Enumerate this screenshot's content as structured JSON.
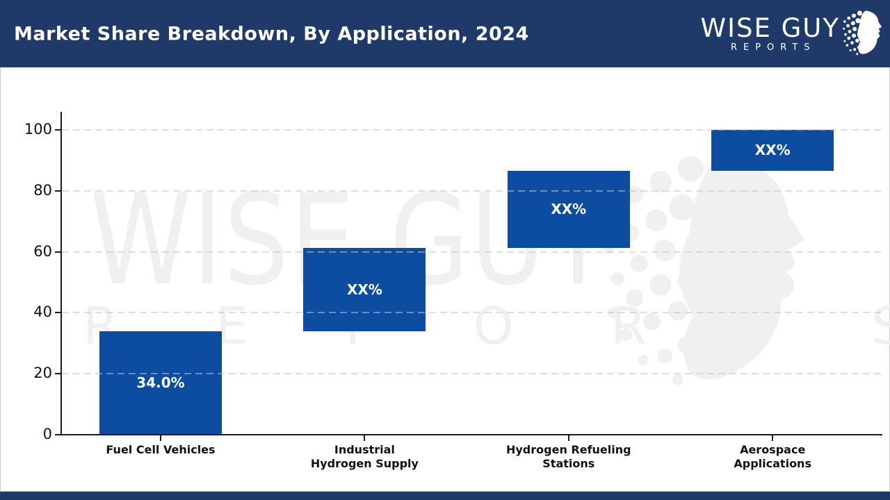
{
  "header": {
    "title": "Market Share Breakdown, By Application, 2024",
    "logo": {
      "line1": "WISE GUY",
      "line2": "REPORTS"
    }
  },
  "watermark": {
    "line1": "WISE GUY",
    "line2": "R E P O R T S"
  },
  "colors": {
    "header_navy": "#1f3a68",
    "bar_blue": "#0c4da2",
    "grid_gray": "#d9d9d9",
    "axis_black": "#1a1a1a",
    "watermark_gray": "#f0f0f0",
    "border_gray": "#c9c9c9"
  },
  "chart_data": {
    "type": "bar",
    "subtype": "waterfall-stacked",
    "title": "Market Share Breakdown, By Application, 2024",
    "categories": [
      "Fuel Cell Vehicles",
      "Industrial Hydrogen Supply",
      "Hydrogen Refueling Stations",
      "Aerospace Applications"
    ],
    "category_lines": [
      [
        "Fuel Cell Vehicles"
      ],
      [
        "Industrial",
        "Hydrogen Supply"
      ],
      [
        "Hydrogen Refueling",
        "Stations"
      ],
      [
        "Aerospace",
        "Applications"
      ]
    ],
    "bar_labels": [
      "34.0%",
      "XX%",
      "XX%",
      "XX%"
    ],
    "segments": [
      [
        0,
        34.0
      ],
      [
        34.0,
        61.3
      ],
      [
        61.3,
        86.6
      ],
      [
        86.6,
        100.0
      ]
    ],
    "values": [
      34.0,
      27.3,
      25.3,
      13.4
    ],
    "yticks": [
      0,
      20,
      40,
      60,
      80,
      100
    ],
    "ylim": [
      0,
      105.5
    ],
    "grid": "dashed-horizontal",
    "legend": "none",
    "xlabel": "",
    "ylabel": ""
  }
}
